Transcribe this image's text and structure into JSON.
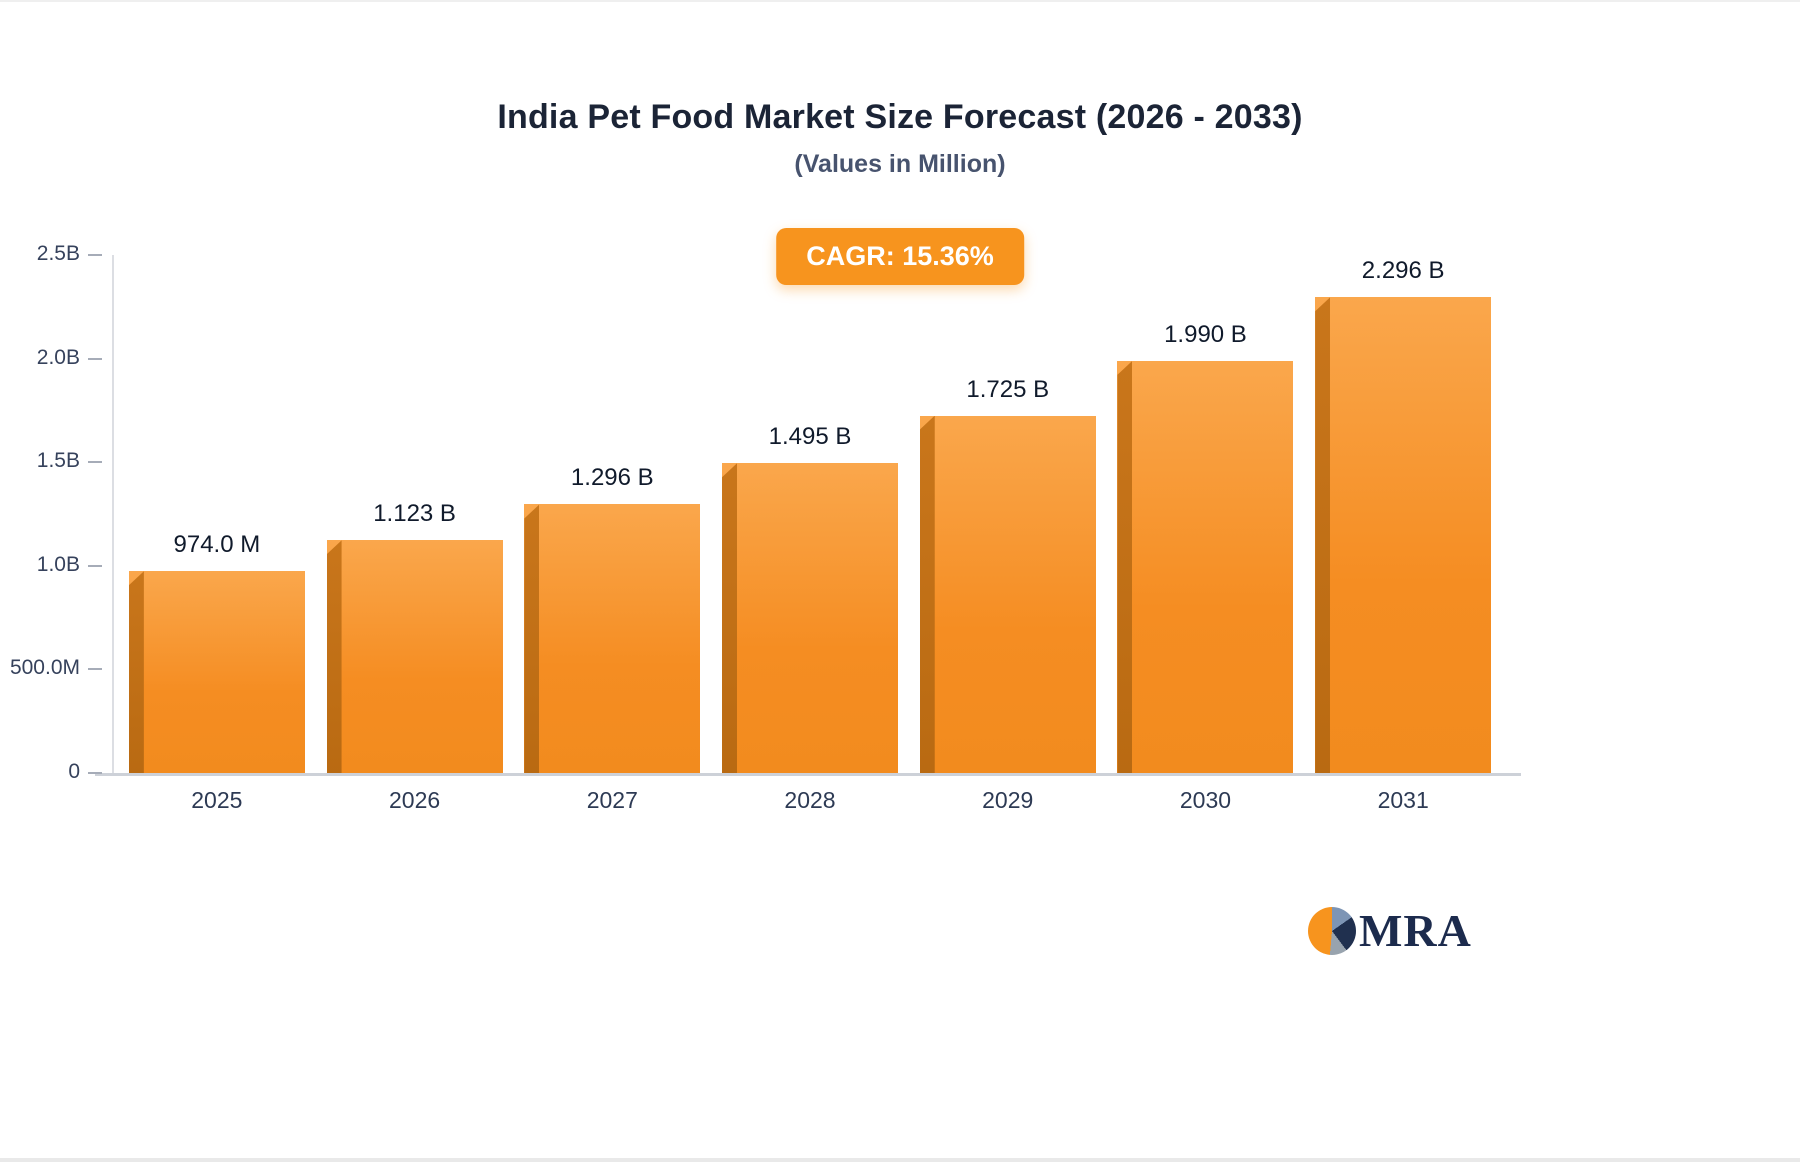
{
  "chart_data": {
    "type": "bar",
    "title": "India Pet Food Market Size Forecast (2026 - 2033)",
    "subtitle": "(Values in Million)",
    "annotation": "CAGR: 15.36%",
    "unit": "Million",
    "categories": [
      "2025",
      "2026",
      "2027",
      "2028",
      "2029",
      "2030",
      "2031"
    ],
    "values": [
      974.0,
      1123,
      1296,
      1495,
      1725,
      1990,
      2296
    ],
    "value_labels": [
      "974.0 M",
      "1.123 B",
      "1.296 B",
      "1.495 B",
      "1.725 B",
      "1.990 B",
      "2.296 B"
    ],
    "xlabel": "",
    "ylabel": "",
    "ylim": [
      0,
      2500
    ],
    "yticks": [
      {
        "value": 2500,
        "label": "2.5B"
      },
      {
        "value": 2000,
        "label": "2.0B"
      },
      {
        "value": 1500,
        "label": "1.5B"
      },
      {
        "value": 1000,
        "label": "1.0B"
      },
      {
        "value": 500,
        "label": "500.0M"
      },
      {
        "value": 0,
        "label": "0"
      }
    ],
    "grid": false,
    "legend": null,
    "bar_color": "#F79333",
    "bar_side_color": "#C2711A",
    "badge_color": "#F7941E"
  },
  "branding": {
    "logo_text": "MRA"
  }
}
